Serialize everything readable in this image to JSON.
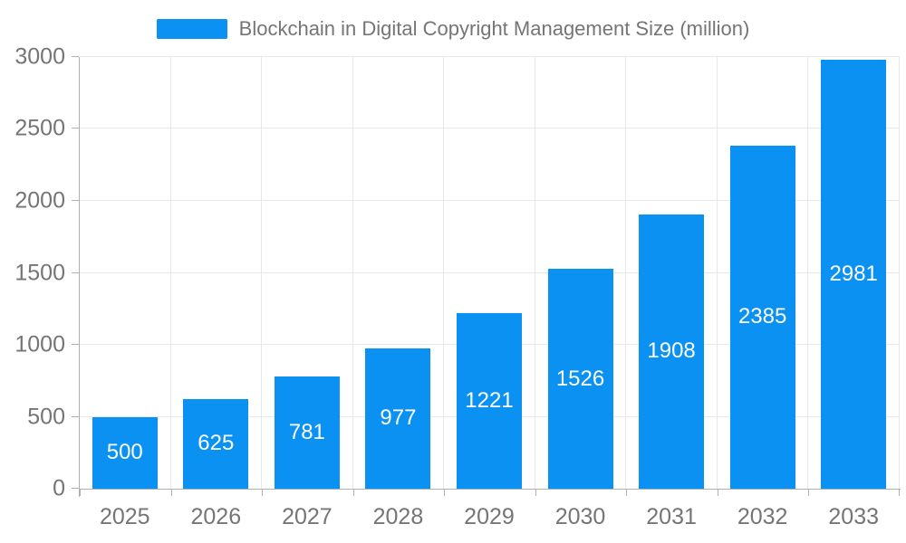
{
  "chart_data": {
    "type": "bar",
    "title": "Blockchain in Digital Copyright Management Size (million)",
    "series_name": "Blockchain in Digital Copyright Management Size (million)",
    "categories": [
      "2025",
      "2026",
      "2027",
      "2028",
      "2029",
      "2030",
      "2031",
      "2032",
      "2033"
    ],
    "values": [
      500,
      625,
      781,
      977,
      1221,
      1526,
      1908,
      2385,
      2981
    ],
    "xlabel": "",
    "ylabel": "",
    "ylim": [
      0,
      3000
    ],
    "yticks": [
      0,
      500,
      1000,
      1500,
      2000,
      2500,
      3000
    ],
    "grid": true,
    "legend_position": "top",
    "value_labels": "inside-center"
  },
  "colors": {
    "bar": "#0a91f2",
    "value_label": "#ffffff",
    "axis_label": "#757575",
    "legend_label": "#757575",
    "gridline": "#e8e8e8",
    "axis_line": "#b0b0b0",
    "background": "#ffffff"
  }
}
